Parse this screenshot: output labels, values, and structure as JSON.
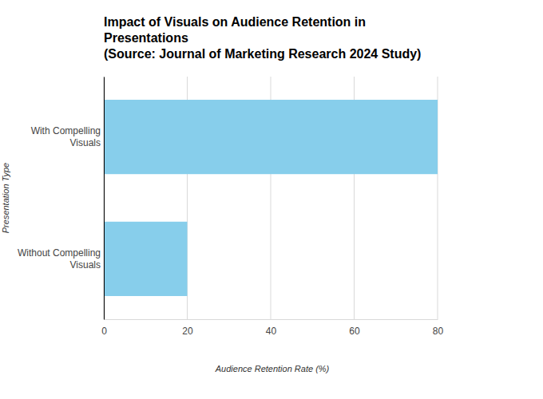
{
  "chart_data": {
    "type": "bar",
    "orientation": "horizontal",
    "title": "Impact of Visuals on Audience Retention in Presentations",
    "subtitle": "(Source: Journal of Marketing Research 2024 Study)",
    "x_label": "Audience Retention Rate (%)",
    "y_label": "Presentation Type",
    "categories": [
      "With Compelling Visuals",
      "Without Compelling Visuals"
    ],
    "values": [
      80,
      20
    ],
    "color": "#87ceeb",
    "xlim": [
      0,
      80
    ],
    "xticks": [
      0,
      20,
      40,
      60,
      80
    ],
    "grid": true
  }
}
